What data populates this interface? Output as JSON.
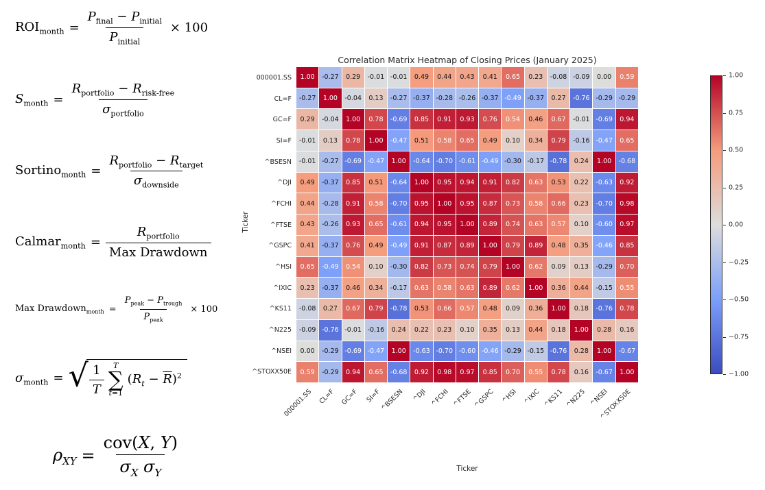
{
  "formulas": [
    {
      "id": "roi",
      "kind": "frac",
      "size": "md",
      "lhs": [
        {
          "t": "ROI"
        },
        {
          "sub": "month"
        }
      ],
      "num": [
        {
          "t": "P",
          "i": 1
        },
        {
          "sub": "final"
        },
        {
          "t": " − "
        },
        {
          "t": "P",
          "i": 1
        },
        {
          "sub": "initial"
        }
      ],
      "den": [
        {
          "t": "P",
          "i": 1
        },
        {
          "sub": "initial"
        }
      ],
      "suffix": "× 100"
    },
    {
      "id": "sharpe",
      "kind": "frac",
      "size": "md",
      "lhs": [
        {
          "t": "S",
          "i": 1
        },
        {
          "sub": "month"
        }
      ],
      "num": [
        {
          "t": "R",
          "i": 1
        },
        {
          "sub": "portfolio"
        },
        {
          "t": " − "
        },
        {
          "t": "R",
          "i": 1
        },
        {
          "sub": "risk-free"
        }
      ],
      "den": [
        {
          "t": "σ",
          "i": 1
        },
        {
          "sub": "portfolio"
        }
      ]
    },
    {
      "id": "sortino",
      "kind": "frac",
      "size": "md",
      "lhs": [
        {
          "t": "Sortino"
        },
        {
          "sub": "month"
        }
      ],
      "num": [
        {
          "t": "R",
          "i": 1
        },
        {
          "sub": "portfolio"
        },
        {
          "t": " − "
        },
        {
          "t": "R",
          "i": 1
        },
        {
          "sub": "target"
        }
      ],
      "den": [
        {
          "t": "σ",
          "i": 1
        },
        {
          "sub": "downside"
        }
      ]
    },
    {
      "id": "calmar",
      "kind": "frac",
      "size": "md",
      "lhs": [
        {
          "t": "Calmar"
        },
        {
          "sub": "month"
        }
      ],
      "num": [
        {
          "t": "R",
          "i": 1
        },
        {
          "sub": "portfolio"
        }
      ],
      "den": [
        {
          "t": "Max Drawdown"
        }
      ]
    },
    {
      "id": "max-drawdown",
      "kind": "frac",
      "size": "sm",
      "lhs": [
        {
          "t": "Max Drawdown"
        },
        {
          "sub": "month"
        }
      ],
      "num": [
        {
          "t": "P",
          "i": 1
        },
        {
          "sub": "peak"
        },
        {
          "t": " − "
        },
        {
          "t": "P",
          "i": 1
        },
        {
          "sub": "trough"
        }
      ],
      "den": [
        {
          "t": "P",
          "i": 1
        },
        {
          "sub": "peak"
        }
      ],
      "suffix": "× 100"
    },
    {
      "id": "sigma",
      "kind": "sigma",
      "size": "md",
      "lhs": [
        {
          "t": "σ",
          "i": 1
        },
        {
          "sub": "month"
        }
      ],
      "frac_num": [
        {
          "t": "1"
        }
      ],
      "frac_den": [
        {
          "t": "T",
          "i": 1
        }
      ],
      "sum_top": [
        {
          "t": "T",
          "i": 1
        }
      ],
      "sum_bottom": [
        {
          "t": "t",
          "i": 1
        },
        {
          "t": "=1"
        }
      ],
      "expr": [
        {
          "t": "("
        },
        {
          "t": "R",
          "i": 1
        },
        {
          "sub": "t",
          "si": 1
        },
        {
          "t": " − "
        },
        {
          "t": "R",
          "i": 1,
          "bar": 1
        },
        {
          "t": ")"
        },
        {
          "sup": "2"
        }
      ]
    },
    {
      "id": "rho",
      "kind": "frac",
      "size": "lg",
      "indent": 55,
      "lhs": [
        {
          "t": "ρ",
          "i": 1
        },
        {
          "sub": "XY",
          "si": 1
        }
      ],
      "num": [
        {
          "t": "cov("
        },
        {
          "t": "X",
          "i": 1
        },
        {
          "t": ", "
        },
        {
          "t": "Y",
          "i": 1
        },
        {
          "t": ")"
        }
      ],
      "den": [
        {
          "t": "σ",
          "i": 1
        },
        {
          "sub": "X",
          "si": 1
        },
        {
          "t": " σ",
          "i": 1
        },
        {
          "sub": "Y",
          "si": 1
        }
      ]
    }
  ],
  "chart_data": {
    "type": "heatmap",
    "title": "Correlation Matrix Heatmap of Closing Prices (January 2025)",
    "xlabel": "Ticker",
    "ylabel": "Ticker",
    "colormap": "coolwarm",
    "vmin": -1.0,
    "vmax": 1.0,
    "colorbar_ticks": [
      1.0,
      0.75,
      0.5,
      0.25,
      0.0,
      -0.25,
      -0.5,
      -0.75,
      -1.0
    ],
    "categories": [
      "000001.SS",
      "CL=F",
      "GC=F",
      "SI=F",
      "^BSESN",
      "^DJI",
      "^FCHI",
      "^FTSE",
      "^GSPC",
      "^HSI",
      "^IXIC",
      "^KS11",
      "^N225",
      "^NSEI",
      "^STOXX50E"
    ],
    "matrix": [
      [
        1.0,
        -0.27,
        0.29,
        -0.01,
        -0.01,
        0.49,
        0.44,
        0.43,
        0.41,
        0.65,
        0.23,
        -0.08,
        -0.09,
        0.0,
        0.59
      ],
      [
        -0.27,
        1.0,
        -0.04,
        0.13,
        -0.27,
        -0.37,
        -0.28,
        -0.26,
        -0.37,
        -0.49,
        -0.37,
        0.27,
        -0.76,
        -0.29,
        -0.29
      ],
      [
        0.29,
        -0.04,
        1.0,
        0.78,
        -0.69,
        0.85,
        0.91,
        0.93,
        0.76,
        0.54,
        0.46,
        0.67,
        -0.01,
        -0.69,
        0.94
      ],
      [
        -0.01,
        0.13,
        0.78,
        1.0,
        -0.47,
        0.51,
        0.58,
        0.65,
        0.49,
        0.1,
        0.34,
        0.79,
        -0.16,
        -0.47,
        0.65
      ],
      [
        -0.01,
        -0.27,
        -0.69,
        -0.47,
        1.0,
        -0.64,
        -0.7,
        -0.61,
        -0.49,
        -0.3,
        -0.17,
        -0.78,
        0.24,
        1.0,
        -0.68
      ],
      [
        0.49,
        -0.37,
        0.85,
        0.51,
        -0.64,
        1.0,
        0.95,
        0.94,
        0.91,
        0.82,
        0.63,
        0.53,
        0.22,
        -0.63,
        0.92
      ],
      [
        0.44,
        -0.28,
        0.91,
        0.58,
        -0.7,
        0.95,
        1.0,
        0.95,
        0.87,
        0.73,
        0.58,
        0.66,
        0.23,
        -0.7,
        0.98
      ],
      [
        0.43,
        -0.26,
        0.93,
        0.65,
        -0.61,
        0.94,
        0.95,
        1.0,
        0.89,
        0.74,
        0.63,
        0.57,
        0.1,
        -0.6,
        0.97
      ],
      [
        0.41,
        -0.37,
        0.76,
        0.49,
        -0.49,
        0.91,
        0.87,
        0.89,
        1.0,
        0.79,
        0.89,
        0.48,
        0.35,
        -0.46,
        0.85
      ],
      [
        0.65,
        -0.49,
        0.54,
        0.1,
        -0.3,
        0.82,
        0.73,
        0.74,
        0.79,
        1.0,
        0.62,
        0.09,
        0.13,
        -0.29,
        0.7
      ],
      [
        0.23,
        -0.37,
        0.46,
        0.34,
        -0.17,
        0.63,
        0.58,
        0.63,
        0.89,
        0.62,
        1.0,
        0.36,
        0.44,
        -0.15,
        0.55
      ],
      [
        -0.08,
        0.27,
        0.67,
        0.79,
        -0.78,
        0.53,
        0.66,
        0.57,
        0.48,
        0.09,
        0.36,
        1.0,
        0.18,
        -0.76,
        0.78
      ],
      [
        -0.09,
        -0.76,
        -0.01,
        -0.16,
        0.24,
        0.22,
        0.23,
        0.1,
        0.35,
        0.13,
        0.44,
        0.18,
        1.0,
        0.28,
        0.16
      ],
      [
        0.0,
        -0.29,
        -0.69,
        -0.47,
        1.0,
        -0.63,
        -0.7,
        -0.6,
        -0.46,
        -0.29,
        -0.15,
        -0.76,
        0.28,
        1.0,
        -0.67
      ],
      [
        0.59,
        -0.29,
        0.94,
        0.65,
        -0.68,
        0.92,
        0.98,
        0.97,
        0.85,
        0.7,
        0.55,
        0.78,
        0.16,
        -0.67,
        1.0
      ]
    ]
  }
}
